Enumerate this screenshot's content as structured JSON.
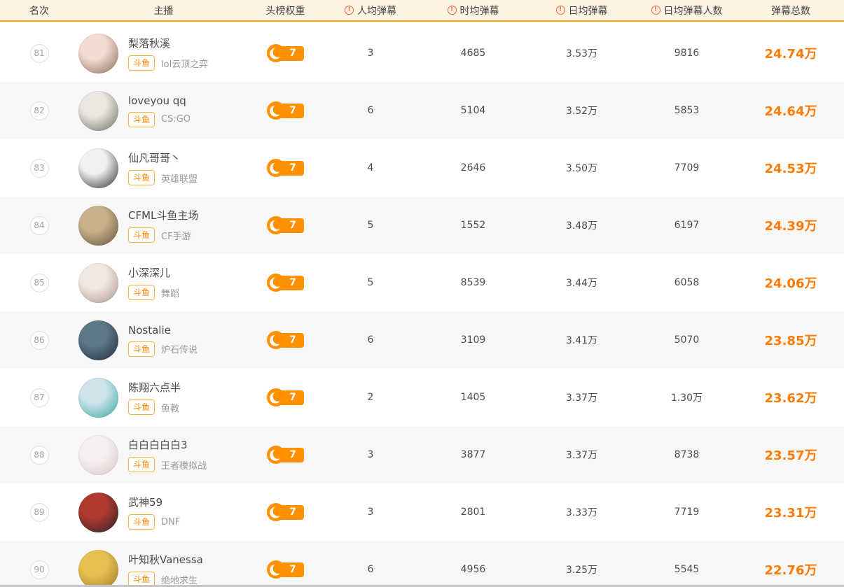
{
  "colors": {
    "accent": "#ff9100",
    "total": "#ff7a00",
    "header-bg": "#fcf3e2",
    "header-border": "#ffa200",
    "row-alt": "#f7f7f7",
    "info": "#f0633f",
    "badge-border": "#ffb243",
    "badge-text": "#ff8400",
    "text": "#4a4a4a"
  },
  "icons": {
    "info_glyph": "!",
    "moon": "crescent-moon"
  },
  "table": {
    "columns": [
      {
        "key": "rank",
        "label": "名次",
        "has_info": false
      },
      {
        "key": "streamer",
        "label": "主播",
        "has_info": false
      },
      {
        "key": "weight",
        "label": "头榜权重",
        "has_info": false
      },
      {
        "key": "per_user",
        "label": "人均弹幕",
        "has_info": true
      },
      {
        "key": "hourly",
        "label": "时均弹幕",
        "has_info": true
      },
      {
        "key": "daily",
        "label": "日均弹幕",
        "has_info": true
      },
      {
        "key": "daily_users",
        "label": "日均弹幕人数",
        "has_info": true
      },
      {
        "key": "total",
        "label": "弹幕总数",
        "has_info": false
      }
    ],
    "rows": [
      {
        "rank": "81",
        "name": "梨落秋溪",
        "platform": "斗鱼",
        "category": "lol云顶之弈",
        "weight": "7",
        "per_user": "3",
        "hourly": "4685",
        "daily": "3.53万",
        "daily_users": "9816",
        "total": "24.74万",
        "avatar_colors": [
          "#f3dcd4",
          "#8a6a55"
        ]
      },
      {
        "rank": "82",
        "name": "loveyou  qq",
        "platform": "斗鱼",
        "category": "CS:GO",
        "weight": "7",
        "per_user": "6",
        "hourly": "5104",
        "daily": "3.52万",
        "daily_users": "5853",
        "total": "24.64万",
        "avatar_colors": [
          "#eae6e0",
          "#6f6a62"
        ]
      },
      {
        "rank": "83",
        "name": "仙凡哥哥丶",
        "platform": "斗鱼",
        "category": "英雄联盟",
        "weight": "7",
        "per_user": "4",
        "hourly": "2646",
        "daily": "3.50万",
        "daily_users": "7709",
        "total": "24.53万",
        "avatar_colors": [
          "#f1f1f1",
          "#2b2b30"
        ]
      },
      {
        "rank": "84",
        "name": "CFML斗鱼主场",
        "platform": "斗鱼",
        "category": "CF手游",
        "weight": "7",
        "per_user": "5",
        "hourly": "1552",
        "daily": "3.48万",
        "daily_users": "6197",
        "total": "24.39万",
        "avatar_colors": [
          "#c9b28a",
          "#63503a"
        ]
      },
      {
        "rank": "85",
        "name": "小深深儿",
        "platform": "斗鱼",
        "category": "舞蹈",
        "weight": "7",
        "per_user": "5",
        "hourly": "8539",
        "daily": "3.44万",
        "daily_users": "6058",
        "total": "24.06万",
        "avatar_colors": [
          "#f2e8e2",
          "#a8928a"
        ]
      },
      {
        "rank": "86",
        "name": "Nostalie",
        "platform": "斗鱼",
        "category": "炉石传说",
        "weight": "7",
        "per_user": "6",
        "hourly": "3109",
        "daily": "3.41万",
        "daily_users": "5070",
        "total": "23.85万",
        "avatar_colors": [
          "#5d7888",
          "#232c3c"
        ]
      },
      {
        "rank": "87",
        "name": "陈翔六点半",
        "platform": "斗鱼",
        "category": "鱼教",
        "weight": "7",
        "per_user": "2",
        "hourly": "1405",
        "daily": "3.37万",
        "daily_users": "1.30万",
        "total": "23.62万",
        "avatar_colors": [
          "#cfe3ea",
          "#2fa8a0"
        ]
      },
      {
        "rank": "88",
        "name": "白白白白白3",
        "platform": "斗鱼",
        "category": "王者模拟战",
        "weight": "7",
        "per_user": "3",
        "hourly": "3877",
        "daily": "3.37万",
        "daily_users": "8738",
        "total": "23.57万",
        "avatar_colors": [
          "#f7f0f1",
          "#d9c6c6"
        ]
      },
      {
        "rank": "89",
        "name": "武神59",
        "platform": "斗鱼",
        "category": "DNF",
        "weight": "7",
        "per_user": "3",
        "hourly": "2801",
        "daily": "3.33万",
        "daily_users": "7719",
        "total": "23.31万",
        "avatar_colors": [
          "#b03a30",
          "#2a2226"
        ]
      },
      {
        "rank": "90",
        "name": "叶知秋Vanessa",
        "platform": "斗鱼",
        "category": "绝地求生",
        "weight": "7",
        "per_user": "6",
        "hourly": "4956",
        "daily": "3.25万",
        "daily_users": "5545",
        "total": "22.76万",
        "avatar_colors": [
          "#e6c152",
          "#a07a28"
        ]
      }
    ]
  }
}
